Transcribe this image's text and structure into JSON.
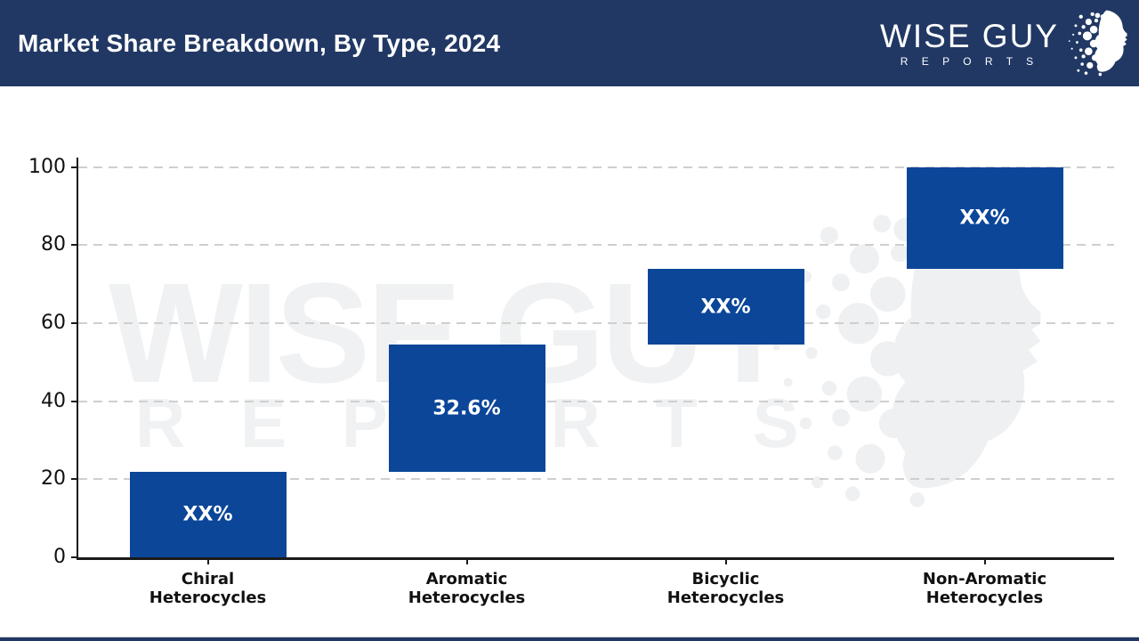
{
  "header": {
    "title": "Market Share Breakdown, By Type, 2024",
    "logo": {
      "line1": "WISE GUY",
      "line2": "R E P O R T S"
    }
  },
  "watermark": {
    "word": "WISE GUY",
    "reports": "R E P O R T S"
  },
  "colors": {
    "header_bg": "#213864",
    "bar_blue": "#0b4699",
    "watermark_gray": "#f0f1f3",
    "gridline_gray": "#cfcfcf",
    "footer_navy": "#213864"
  },
  "chart_data": {
    "type": "bar",
    "subtype": "waterfall-floating-bars",
    "title": "Market Share Breakdown, By Type, 2024",
    "categories": [
      [
        "Chiral",
        "Heterocycles"
      ],
      [
        "Aromatic",
        "Heterocycles"
      ],
      [
        "Bicyclic",
        "Heterocycles"
      ],
      [
        "Non-Aromatic",
        "Heterocycles"
      ]
    ],
    "segments": [
      {
        "start": 0,
        "end": 21.8,
        "height": 21.8,
        "label": "XX%"
      },
      {
        "start": 21.8,
        "end": 54.4,
        "height": 32.6,
        "label": "32.6%"
      },
      {
        "start": 54.4,
        "end": 73.9,
        "height": 19.5,
        "label": "XX%"
      },
      {
        "start": 73.9,
        "end": 100,
        "height": 26.1,
        "label": "XX%"
      }
    ],
    "ylim": [
      0,
      100
    ],
    "yticks": [
      "0",
      "20",
      "40",
      "60",
      "80",
      "100"
    ],
    "grid": "dashed horizontal, behind bars",
    "legend": "none",
    "bar_label_color": "#ffffff"
  }
}
